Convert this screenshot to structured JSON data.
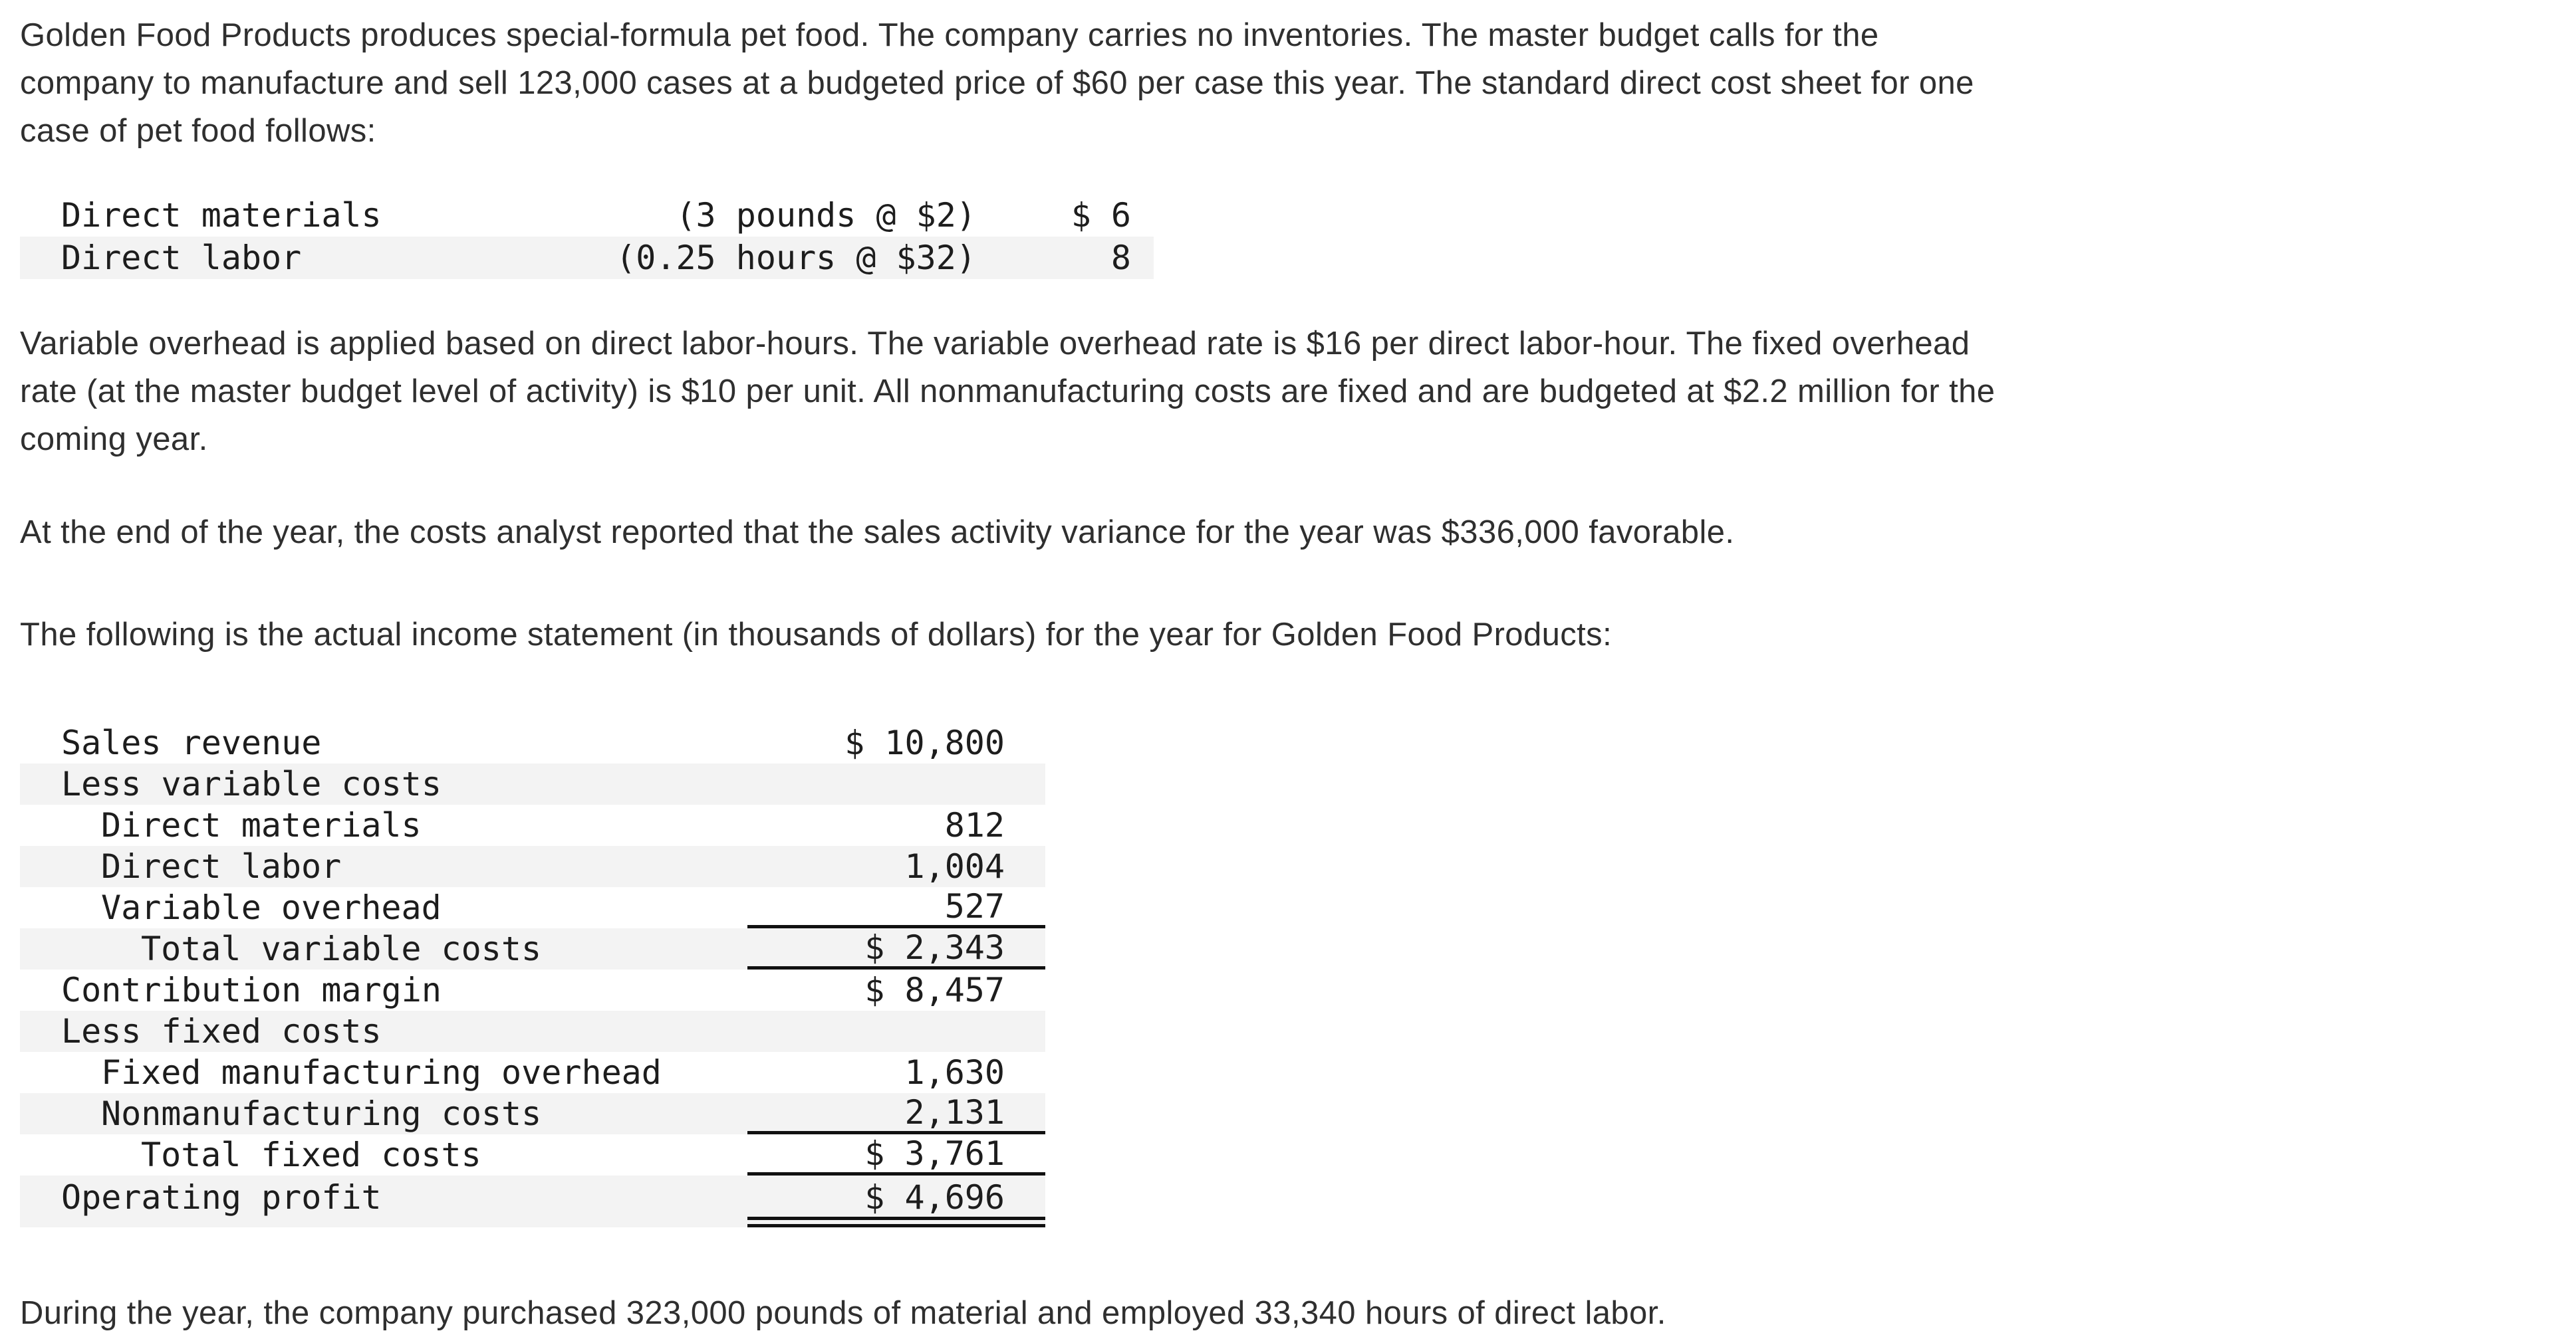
{
  "colors": {
    "row_stripe": "#f3f3f3",
    "rule_line": "#111111",
    "text": "#2f2f2f"
  },
  "intro": {
    "lines": [
      "Golden Food Products produces special-formula pet food. The company carries no inventories. The master budget calls for the",
      "company to manufacture and sell 123,000 cases at a budgeted price of $60 per case this year. The standard direct cost sheet for one",
      "case of pet food follows:"
    ]
  },
  "standard_cost_table": {
    "rows": [
      {
        "label": "Direct materials",
        "detail": "(3 pounds @ $2)",
        "amount": "$ 6"
      },
      {
        "label": "Direct labor",
        "detail": "(0.25 hours @ $32)",
        "amount": "8"
      }
    ]
  },
  "overhead": {
    "lines": [
      "Variable overhead is applied based on direct labor-hours. The variable overhead rate is $16 per direct labor-hour. The fixed overhead",
      "rate (at the master budget level of activity) is $10 per unit. All nonmanufacturing costs are fixed and are budgeted at $2.2 million for the",
      "coming year."
    ]
  },
  "variance": {
    "lines": [
      "At the end of the year, the costs analyst reported that the sales activity variance for the year was $336,000 favorable."
    ]
  },
  "income_intro": {
    "lines": [
      "The following is the actual income statement (in thousands of dollars) for the year for Golden Food Products:"
    ]
  },
  "income_statement": {
    "rows": [
      {
        "label": "Sales revenue",
        "amount": "$ 10,800"
      },
      {
        "label": "Less variable costs",
        "amount": ""
      },
      {
        "label": "Direct materials",
        "amount": "812"
      },
      {
        "label": "Direct labor",
        "amount": "1,004"
      },
      {
        "label": "Variable overhead",
        "amount": "527"
      },
      {
        "label": "Total variable costs",
        "amount": "$ 2,343"
      },
      {
        "label": "Contribution margin",
        "amount": "$ 8,457"
      },
      {
        "label": "Less fixed costs",
        "amount": ""
      },
      {
        "label": "Fixed manufacturing overhead",
        "amount": "1,630"
      },
      {
        "label": "Nonmanufacturing costs",
        "amount": "2,131"
      },
      {
        "label": "Total fixed costs",
        "amount": "$ 3,761"
      },
      {
        "label": "Operating profit",
        "amount": "$ 4,696"
      }
    ]
  },
  "closing": {
    "lines": [
      "During the year, the company purchased 323,000 pounds of material and employed 33,340 hours of direct labor."
    ]
  }
}
